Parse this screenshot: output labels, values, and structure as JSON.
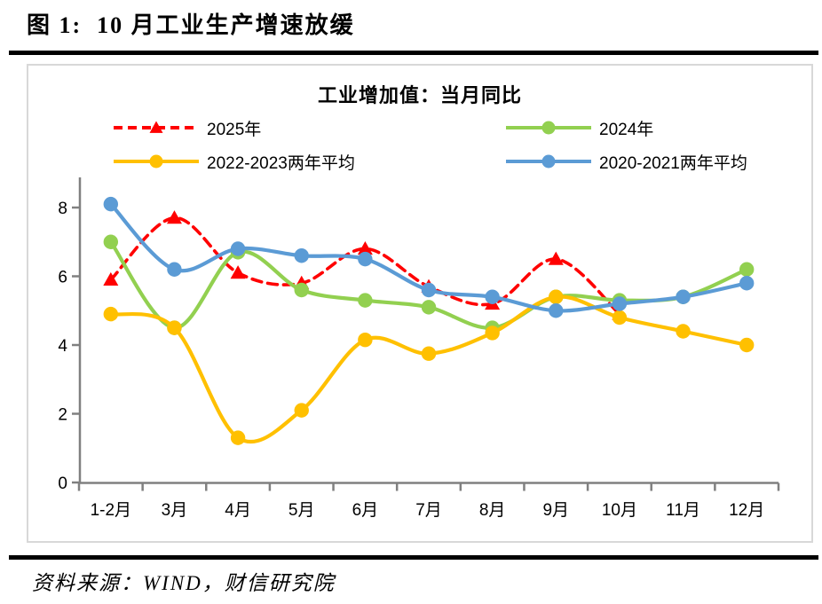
{
  "page": {
    "title": "图 1:  10 月工业生产增速放缓",
    "source": "资料来源：WIND，财信研究院"
  },
  "chart_data": {
    "type": "line",
    "title": "工业增加值：当月同比",
    "categories": [
      "1-2月",
      "3月",
      "4月",
      "5月",
      "6月",
      "7月",
      "8月",
      "9月",
      "10月",
      "11月",
      "12月"
    ],
    "y_ticks": [
      0,
      2,
      4,
      6,
      8
    ],
    "ylim": [
      0,
      8.9
    ],
    "xlabel": "",
    "ylabel": "",
    "grid": false,
    "legend_position": "top-two-columns",
    "smoothed_lines": true,
    "axis_color": "#808080",
    "series": [
      {
        "name": "2025年",
        "color": "#ff0000",
        "dashed": true,
        "marker": "triangle",
        "values": [
          5.9,
          7.7,
          6.1,
          5.8,
          6.8,
          5.7,
          5.2,
          6.5,
          4.9,
          null,
          null
        ]
      },
      {
        "name": "2024年",
        "color": "#92d050",
        "dashed": false,
        "marker": "circle",
        "values": [
          7.0,
          4.5,
          6.7,
          5.6,
          5.3,
          5.1,
          4.5,
          5.4,
          5.3,
          5.4,
          6.2
        ]
      },
      {
        "name": "2022-2023两年平均",
        "color": "#ffc000",
        "dashed": false,
        "marker": "circle",
        "values": [
          4.9,
          4.5,
          1.3,
          2.1,
          4.15,
          3.75,
          4.35,
          5.4,
          4.8,
          4.4,
          4.0
        ]
      },
      {
        "name": "2020-2021两年平均",
        "color": "#5b9bd5",
        "dashed": false,
        "marker": "circle",
        "values": [
          8.1,
          6.2,
          6.8,
          6.6,
          6.5,
          5.6,
          5.4,
          5.0,
          5.2,
          5.4,
          5.8
        ]
      }
    ]
  }
}
